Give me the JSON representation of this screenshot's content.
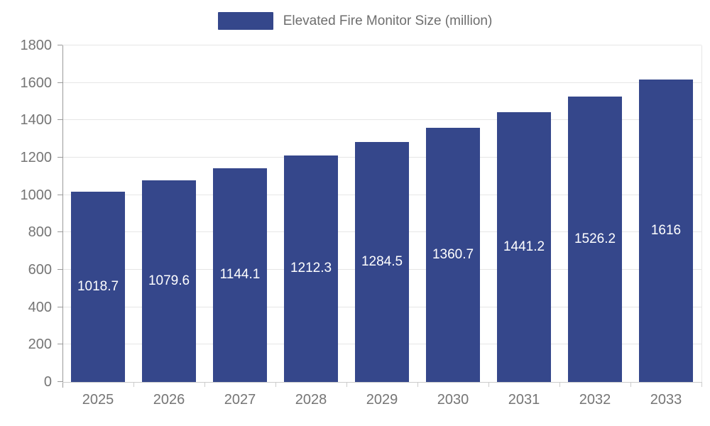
{
  "chart_data": {
    "type": "bar",
    "title": "Elevated Fire Monitor Size (million)",
    "categories": [
      "2025",
      "2026",
      "2027",
      "2028",
      "2029",
      "2030",
      "2031",
      "2032",
      "2033"
    ],
    "values": [
      1018.7,
      1079.6,
      1144.1,
      1212.3,
      1284.5,
      1360.7,
      1441.2,
      1526.2,
      1616
    ],
    "value_labels": [
      "1018.7",
      "1079.6",
      "1144.1",
      "1212.3",
      "1284.5",
      "1360.7",
      "1441.2",
      "1526.2",
      "1616"
    ],
    "xlabel": "",
    "ylabel": "",
    "ylim": [
      0,
      1800
    ],
    "yticks": [
      0,
      200,
      400,
      600,
      800,
      1000,
      1200,
      1400,
      1600,
      1800
    ],
    "grid": true,
    "legend_position": "top-center",
    "bar_color": "#35478B",
    "bar_label_color": "#ffffff",
    "grid_color": "#e6e6e6",
    "y_axis_color": "#999999",
    "x_axis_color": "#cccccc",
    "tick_label_color": "#757575",
    "legend_text_color": "#6e6e6e"
  }
}
